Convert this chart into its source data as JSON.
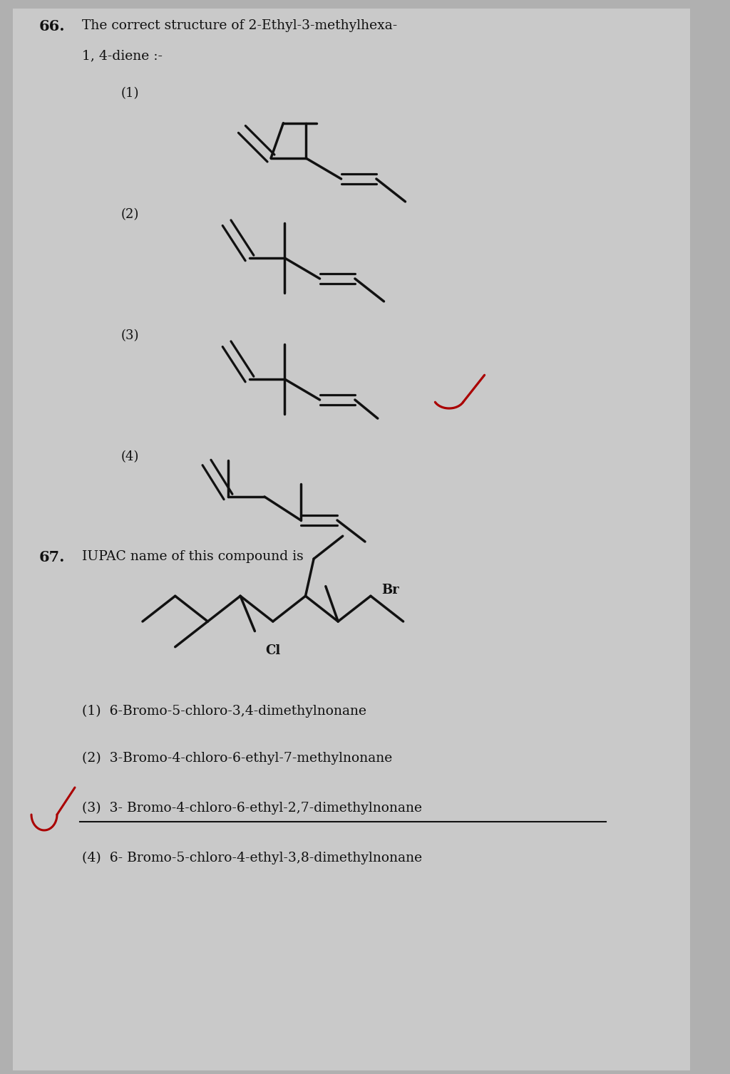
{
  "bg_color": "#b8b8b8",
  "page_bg": "#c8c8c8",
  "text_color": "#111111",
  "bond_color": "#111111",
  "red_color": "#aa0000",
  "options_67": [
    "(1)  6-Bromo-5-chloro-3,4-dimethylnonane",
    "(2)  3-Bromo-4-chloro-6-ethyl-7-methylnonane",
    "(3)  3- Bromo-4-chloro-6-ethyl-2,7-dimethylnonane",
    "(4)  6- Bromo-5-chloro-4-ethyl-3,8-dimethylnonane"
  ]
}
